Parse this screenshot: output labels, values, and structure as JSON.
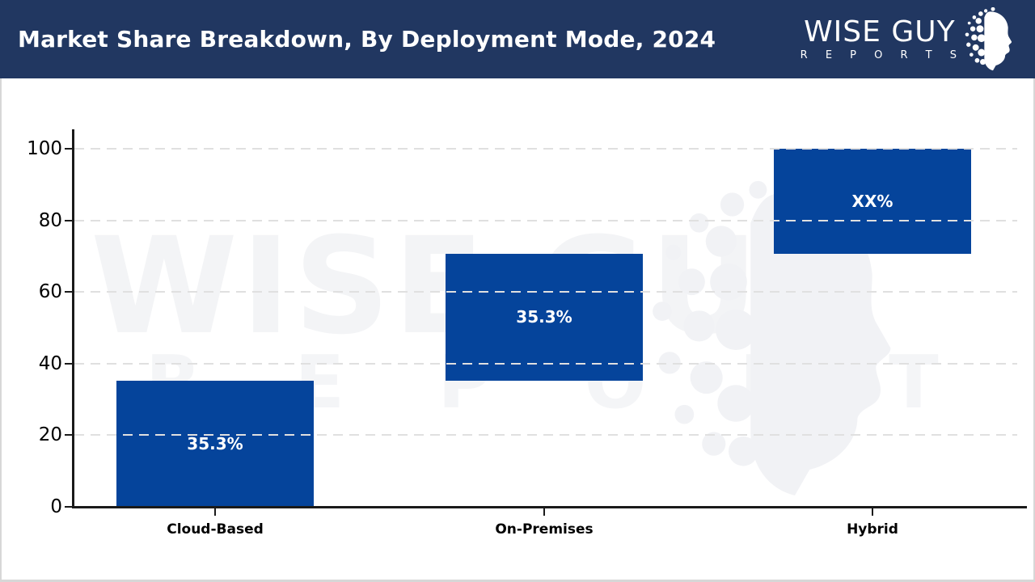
{
  "header": {
    "title": "Market Share Breakdown, By Deployment Mode, 2024",
    "logo": {
      "line1": "WISE GUY",
      "line2": "R E P O R T S"
    }
  },
  "watermark": {
    "line1": "WISE GUY",
    "line2": "R E P O R T S"
  },
  "colors": {
    "header_bg": "#213761",
    "bar": "#05449b",
    "grid": "#e0e0e0",
    "axis": "#1a1a1a",
    "bar_label": "#ffffff",
    "watermark": "#f3f4f6"
  },
  "chart_data": {
    "type": "bar",
    "variant": "floating-waterfall",
    "title": "Market Share Breakdown, By Deployment Mode, 2024",
    "categories": [
      "Cloud-Based",
      "On-Premises",
      "Hybrid"
    ],
    "series": [
      {
        "name": "Market Share (%)",
        "segments": [
          {
            "category": "Cloud-Based",
            "start": 0,
            "end": 35.3,
            "label": "35.3%"
          },
          {
            "category": "On-Premises",
            "start": 35.3,
            "end": 70.6,
            "label": "35.3%"
          },
          {
            "category": "Hybrid",
            "start": 70.6,
            "end": 100,
            "label": "XX%"
          }
        ]
      }
    ],
    "xlabel": "",
    "ylabel": "",
    "ylim": [
      0,
      100
    ],
    "yticks": [
      0,
      20,
      40,
      60,
      80,
      100
    ],
    "grid": "horizontal-dashed",
    "legend": "none"
  }
}
